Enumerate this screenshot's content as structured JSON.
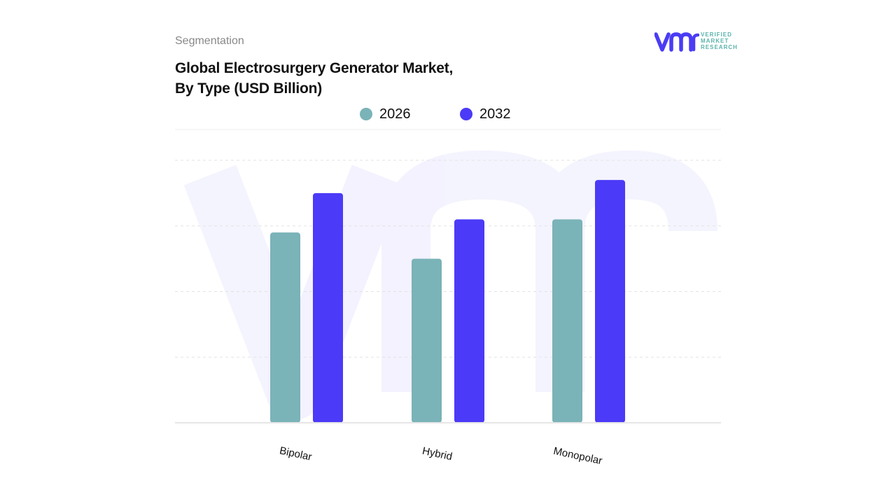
{
  "header": {
    "segmentation_label": "Segmentation",
    "title_line1": "Global Electrosurgery Generator Market,",
    "title_line2": "By Type (USD Billion)"
  },
  "logo": {
    "mark": "vmr",
    "line1": "VERIFIED",
    "line2": "MARKET",
    "line3": "RESEARCH",
    "brand_color": "#4b3cf5",
    "text_color": "#5ab3ac"
  },
  "chart_data": {
    "type": "bar",
    "categories": [
      "Bipolar",
      "Hybrid",
      "Monopolar"
    ],
    "series": [
      {
        "name": "2026",
        "color": "#7ab3b8",
        "values": [
          2.9,
          2.5,
          3.1
        ]
      },
      {
        "name": "2032",
        "color": "#4b3af7",
        "values": [
          3.5,
          3.1,
          3.7
        ]
      }
    ],
    "title": "Global Electrosurgery Generator Market, By Type (USD Billion)",
    "xlabel": "",
    "ylabel": "",
    "ylim": [
      0,
      4
    ],
    "grid": true,
    "legend": "top-center"
  }
}
